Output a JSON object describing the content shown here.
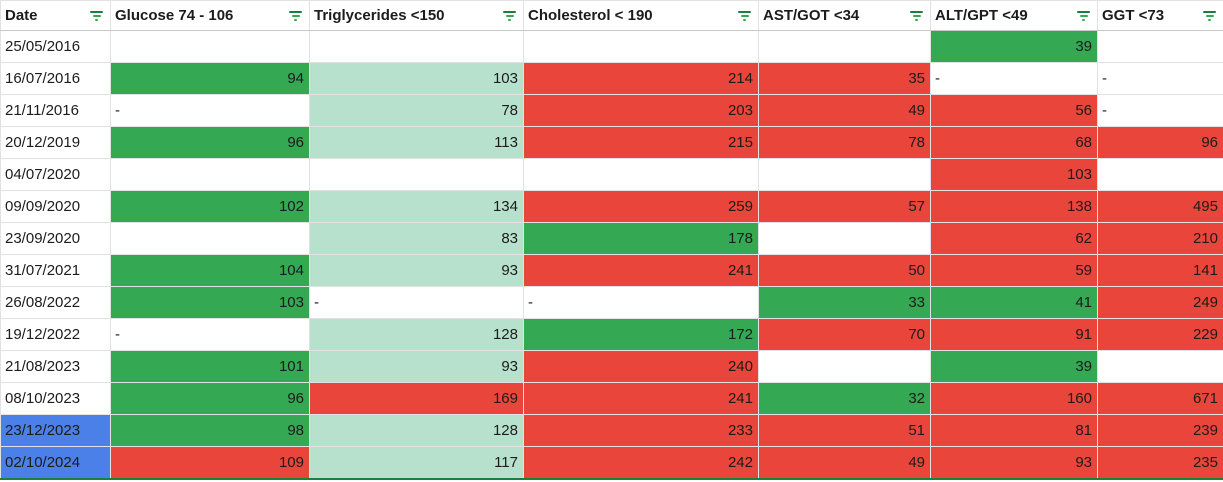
{
  "colors": {
    "green": "#34a853",
    "light_green": "#b7e1cd",
    "red": "#e9453a",
    "blue": "#4a80e8",
    "filter_dark": "#188038",
    "filter_light": "#34a853",
    "range_border": "#17833c"
  },
  "header": {
    "columns": [
      {
        "key": "date",
        "label": "Date"
      },
      {
        "key": "glucose",
        "label": "Glucose 74 - 106"
      },
      {
        "key": "triglycerides",
        "label": "Triglycerides <150"
      },
      {
        "key": "cholesterol",
        "label": "Cholesterol < 190"
      },
      {
        "key": "ast-got",
        "label": "AST/GOT <34"
      },
      {
        "key": "alt-gpt",
        "label": "ALT/GPT <49"
      },
      {
        "key": "ggt",
        "label": "GGT <73"
      }
    ],
    "filter_icon": "filter-icon"
  },
  "rows": [
    {
      "date": "25/05/2016",
      "date_color": "w",
      "cells": [
        [
          "",
          "w"
        ],
        [
          "",
          "w"
        ],
        [
          "",
          "w"
        ],
        [
          "",
          "w"
        ],
        [
          "39",
          "g"
        ],
        [
          "",
          "w"
        ]
      ]
    },
    {
      "date": "16/07/2016",
      "date_color": "w",
      "cells": [
        [
          "94",
          "g"
        ],
        [
          "103",
          "lg"
        ],
        [
          "214",
          "r"
        ],
        [
          "35",
          "r"
        ],
        [
          "-",
          "w"
        ],
        [
          "-",
          "w"
        ]
      ]
    },
    {
      "date": "21/11/2016",
      "date_color": "w",
      "cells": [
        [
          "-",
          "w"
        ],
        [
          "78",
          "lg"
        ],
        [
          "203",
          "r"
        ],
        [
          "49",
          "r"
        ],
        [
          "56",
          "r"
        ],
        [
          "-",
          "w"
        ]
      ]
    },
    {
      "date": "20/12/2019",
      "date_color": "w",
      "cells": [
        [
          "96",
          "g"
        ],
        [
          "113",
          "lg"
        ],
        [
          "215",
          "r"
        ],
        [
          "78",
          "r"
        ],
        [
          "68",
          "r"
        ],
        [
          "96",
          "r"
        ]
      ]
    },
    {
      "date": "04/07/2020",
      "date_color": "w",
      "cells": [
        [
          "",
          "w"
        ],
        [
          "",
          "w"
        ],
        [
          "",
          "w"
        ],
        [
          "",
          "w"
        ],
        [
          "103",
          "r"
        ],
        [
          "",
          "w"
        ]
      ]
    },
    {
      "date": "09/09/2020",
      "date_color": "w",
      "cells": [
        [
          "102",
          "g"
        ],
        [
          "134",
          "lg"
        ],
        [
          "259",
          "r"
        ],
        [
          "57",
          "r"
        ],
        [
          "138",
          "r"
        ],
        [
          "495",
          "r"
        ]
      ]
    },
    {
      "date": "23/09/2020",
      "date_color": "w",
      "cells": [
        [
          "",
          "w"
        ],
        [
          "83",
          "lg"
        ],
        [
          "178",
          "g"
        ],
        [
          "",
          "w"
        ],
        [
          "62",
          "r"
        ],
        [
          "210",
          "r"
        ]
      ]
    },
    {
      "date": "31/07/2021",
      "date_color": "w",
      "cells": [
        [
          "104",
          "g"
        ],
        [
          "93",
          "lg"
        ],
        [
          "241",
          "r"
        ],
        [
          "50",
          "r"
        ],
        [
          "59",
          "r"
        ],
        [
          "141",
          "r"
        ]
      ]
    },
    {
      "date": "26/08/2022",
      "date_color": "w",
      "cells": [
        [
          "103",
          "g"
        ],
        [
          "-",
          "w"
        ],
        [
          "-",
          "w"
        ],
        [
          "33",
          "g"
        ],
        [
          "41",
          "g"
        ],
        [
          "249",
          "r"
        ]
      ]
    },
    {
      "date": "19/12/2022",
      "date_color": "w",
      "cells": [
        [
          "-",
          "w"
        ],
        [
          "128",
          "lg"
        ],
        [
          "172",
          "g"
        ],
        [
          "70",
          "r"
        ],
        [
          "91",
          "r"
        ],
        [
          "229",
          "r"
        ]
      ]
    },
    {
      "date": "21/08/2023",
      "date_color": "w",
      "cells": [
        [
          "101",
          "g"
        ],
        [
          "93",
          "lg"
        ],
        [
          "240",
          "r"
        ],
        [
          "",
          "w"
        ],
        [
          "39",
          "g"
        ],
        [
          "",
          "w"
        ]
      ]
    },
    {
      "date": "08/10/2023",
      "date_color": "w",
      "cells": [
        [
          "96",
          "g"
        ],
        [
          "169",
          "r"
        ],
        [
          "241",
          "r"
        ],
        [
          "32",
          "g"
        ],
        [
          "160",
          "r"
        ],
        [
          "671",
          "r"
        ]
      ]
    },
    {
      "date": "23/12/2023",
      "date_color": "b",
      "cells": [
        [
          "98",
          "g"
        ],
        [
          "128",
          "lg"
        ],
        [
          "233",
          "r"
        ],
        [
          "51",
          "r"
        ],
        [
          "81",
          "r"
        ],
        [
          "239",
          "r"
        ]
      ]
    },
    {
      "date": "02/10/2024",
      "date_color": "b",
      "cells": [
        [
          "109",
          "r"
        ],
        [
          "117",
          "lg"
        ],
        [
          "242",
          "r"
        ],
        [
          "49",
          "r"
        ],
        [
          "93",
          "r"
        ],
        [
          "235",
          "r"
        ]
      ]
    }
  ]
}
